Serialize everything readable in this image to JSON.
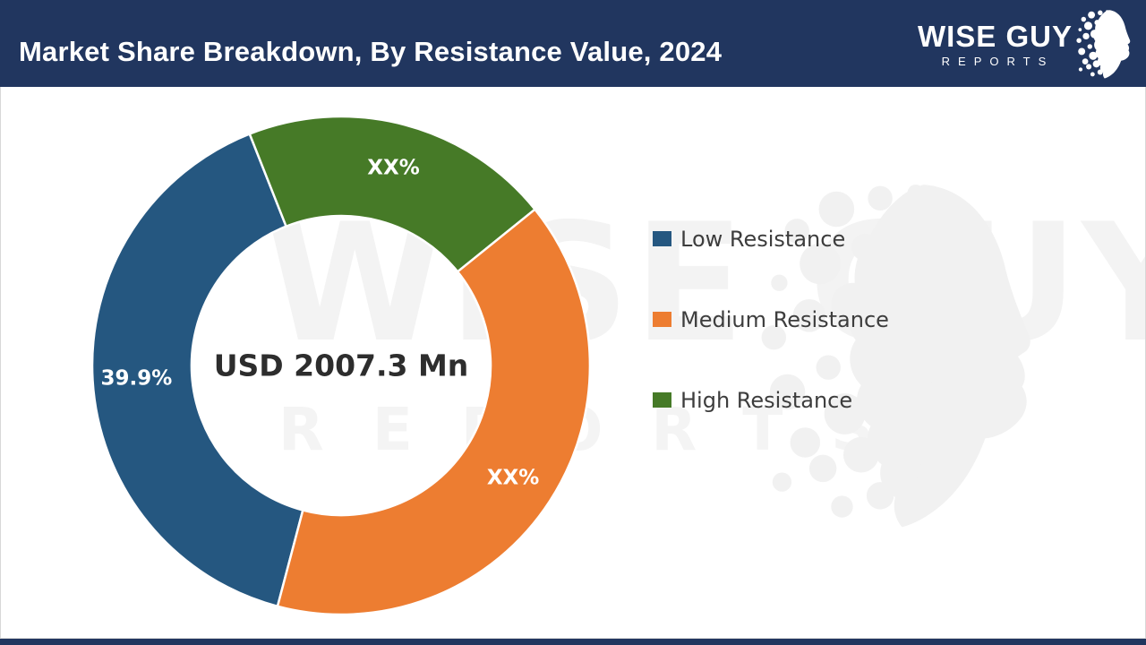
{
  "header": {
    "title": "Market Share Breakdown, By Resistance Value, 2024",
    "logo": {
      "line1": "WISE GUY",
      "line2": "REPORTS"
    }
  },
  "watermark": {
    "line1": "WISE GUY",
    "line2": "REPORTS"
  },
  "chart_data": {
    "type": "pie",
    "subtype": "donut",
    "title": "Market Share Breakdown, By Resistance Value, 2024",
    "center_label": "USD 2007.3 Mn",
    "segments": [
      {
        "name": "Low Resistance",
        "display_label": "39.9%",
        "value": 39.9,
        "color": "#255780"
      },
      {
        "name": "High Resistance",
        "display_label": "XX%",
        "value": 20.2,
        "color": "#467A27"
      },
      {
        "name": "Medium Resistance",
        "display_label": "XX%",
        "value": 39.9,
        "color": "#ED7D31"
      }
    ],
    "legend": [
      {
        "label": "Low Resistance",
        "color": "#255780"
      },
      {
        "label": "Medium Resistance",
        "color": "#ED7D31"
      },
      {
        "label": "High Resistance",
        "color": "#467A27"
      }
    ],
    "legend_position": "right",
    "start_angle_deg": 194.8,
    "donut_hole_ratio": 0.6,
    "gridlines": false
  },
  "colors": {
    "header_bg": "#21365F",
    "footer_bg": "#21365F",
    "content_border": "#D8D8D8",
    "center_text": "#2D2D2D",
    "legend_text": "#3D3D3D",
    "watermark": "#F2F2F2"
  }
}
